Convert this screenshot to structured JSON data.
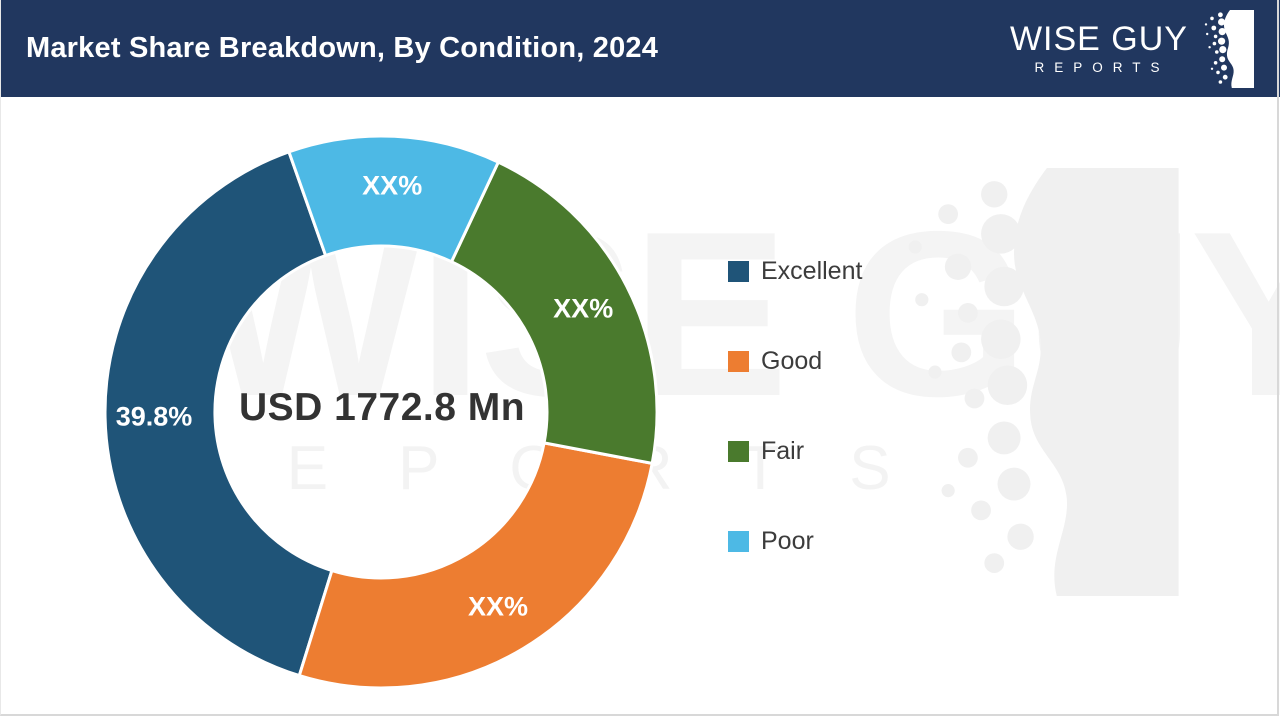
{
  "header": {
    "title": "Market Share Breakdown, By Condition, 2024",
    "background_color": "#21375f",
    "logo": {
      "line1": "WISE GUY",
      "line2": "REPORTS"
    }
  },
  "watermark": {
    "line1": "WISE GUY",
    "line2": "REPORTS"
  },
  "chart_data": {
    "type": "pie",
    "subtype": "donut",
    "title": "Market Share Breakdown, By Condition, 2024",
    "center_label": "USD 1772.8 Mn",
    "legend_position": "right",
    "start_angle_deg": 109.5,
    "direction": "counterclockwise",
    "gap_color": "#ffffff",
    "segments": [
      {
        "name": "Excellent",
        "value": 39.8,
        "label": "39.8%",
        "color": "#1f5478"
      },
      {
        "name": "Good",
        "value": 26.8,
        "label": "XX%",
        "color": "#ed7d31"
      },
      {
        "name": "Fair",
        "value": 21.0,
        "label": "XX%",
        "color": "#4a7a2d"
      },
      {
        "name": "Poor",
        "value": 12.4,
        "label": "XX%",
        "color": "#4db9e5"
      }
    ]
  }
}
